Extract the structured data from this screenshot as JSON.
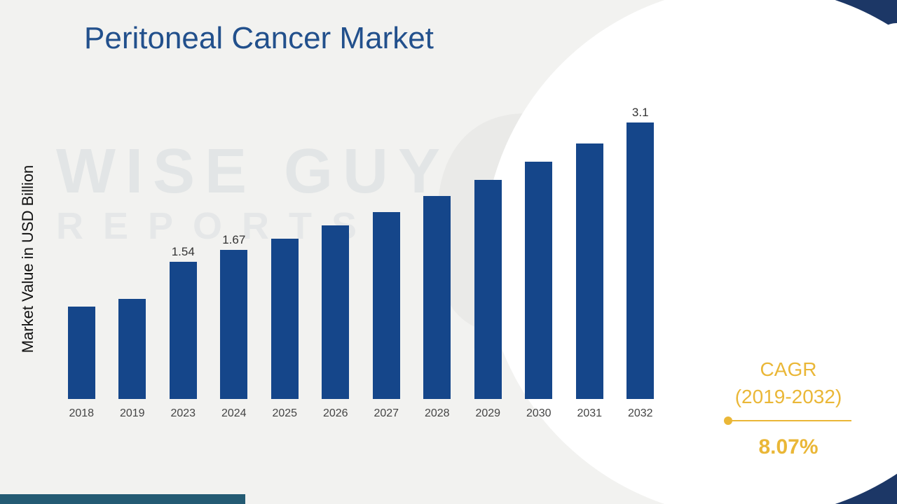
{
  "title": "Peritoneal Cancer Market",
  "logo": {
    "main": "WISEGUY",
    "sub": "R E P O R T S"
  },
  "y_axis_label": "Market Value in USD Billion",
  "chart": {
    "type": "bar",
    "categories": [
      "2018",
      "2019",
      "2023",
      "2024",
      "2025",
      "2026",
      "2027",
      "2028",
      "2029",
      "2030",
      "2031",
      "2032"
    ],
    "values": [
      1.04,
      1.12,
      1.54,
      1.67,
      1.8,
      1.95,
      2.1,
      2.28,
      2.46,
      2.66,
      2.87,
      3.1
    ],
    "shown_value_indices": [
      2,
      3,
      11
    ],
    "bar_color": "#15468a",
    "bar_width_pct": 74,
    "ylim": [
      0,
      3.3
    ],
    "background_color": "#f2f2f0",
    "x_label_fontsize": 16,
    "value_label_fontsize": 17
  },
  "cagr": {
    "label1": "CAGR",
    "label2": "(2019-2032)",
    "value": "8.07%",
    "color": "#eab737"
  },
  "watermark": {
    "line1": "WISE GUY",
    "line2": "REPORTS"
  },
  "colors": {
    "title": "#22508c",
    "side_panel": "#1c3766",
    "page_bg": "#f2f2f0",
    "arc": "#ffffff",
    "bottom_bar": "#245b73"
  }
}
